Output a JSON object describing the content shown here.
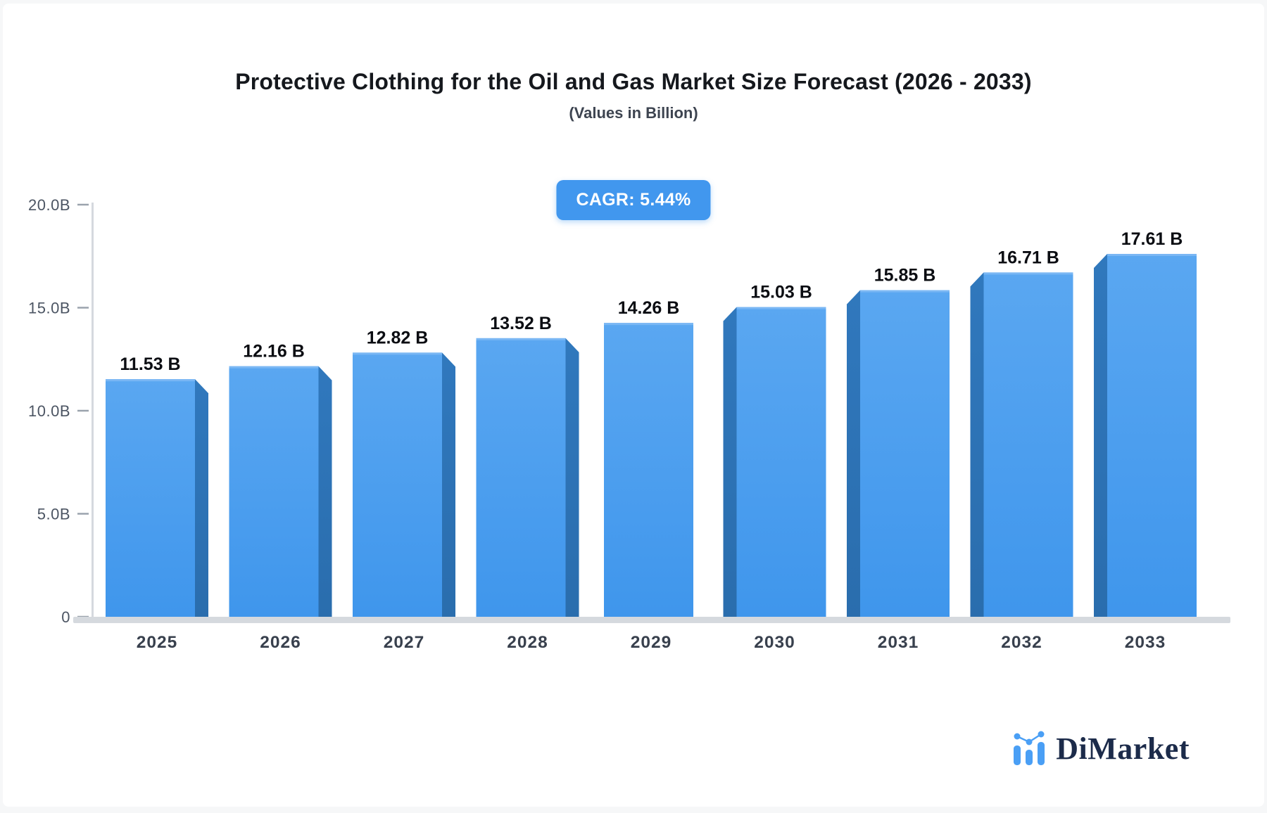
{
  "header": {
    "title": "Protective Clothing for the Oil and Gas Market Size Forecast (2026 - 2033)",
    "subtitle": "(Values in Billion)"
  },
  "badge": {
    "label": "CAGR: 5.44%"
  },
  "chart_data": {
    "type": "bar",
    "title": "Protective Clothing for the Oil and Gas Market Size Forecast (2026 - 2033)",
    "subtitle": "(Values in Billion)",
    "unit": "Billion",
    "cagr": "5.44%",
    "categories": [
      "2025",
      "2026",
      "2027",
      "2028",
      "2029",
      "2030",
      "2031",
      "2032",
      "2033"
    ],
    "values": [
      11.53,
      12.16,
      12.82,
      13.52,
      14.26,
      15.03,
      15.85,
      16.71,
      17.61
    ],
    "value_labels": [
      "11.53 B",
      "12.16 B",
      "12.82 B",
      "13.52 B",
      "14.26 B",
      "15.03 B",
      "15.85 B",
      "16.71 B",
      "17.61 B"
    ],
    "ylim": [
      0,
      20
    ],
    "yticks": [
      {
        "value": 20,
        "label": "20.0B"
      },
      {
        "value": 15,
        "label": "15.0B"
      },
      {
        "value": 10,
        "label": "10.0B"
      },
      {
        "value": 5,
        "label": "5.0B"
      },
      {
        "value": 0,
        "label": "0"
      }
    ],
    "grid": false,
    "legend": false,
    "bar_style": "3d-perspective"
  },
  "logo": {
    "text": "DiMarket",
    "icon": "bar-line-chart-icon"
  },
  "colors": {
    "bar_face_top": "#5aa7f1",
    "bar_face_bottom": "#3f96ec",
    "bar_face_highlight": "#7db9f4",
    "bar_side_top": "#3078bd",
    "bar_side_bottom": "#2a6dad",
    "badge_bg": "#4197ee",
    "badge_text": "#ffffff",
    "axis": "#d5d9de",
    "tick_dash": "#9aa3ad",
    "tick_text": "#4c5563",
    "year_text": "#38404d",
    "value_text": "#0b0d12",
    "title_text": "#15181d",
    "subtitle_text": "#3d4450",
    "logo_text": "#1c2b4a",
    "logo_icon": "#4a9ff5",
    "page_bg": "#f6f7f8",
    "card_bg": "#ffffff"
  }
}
